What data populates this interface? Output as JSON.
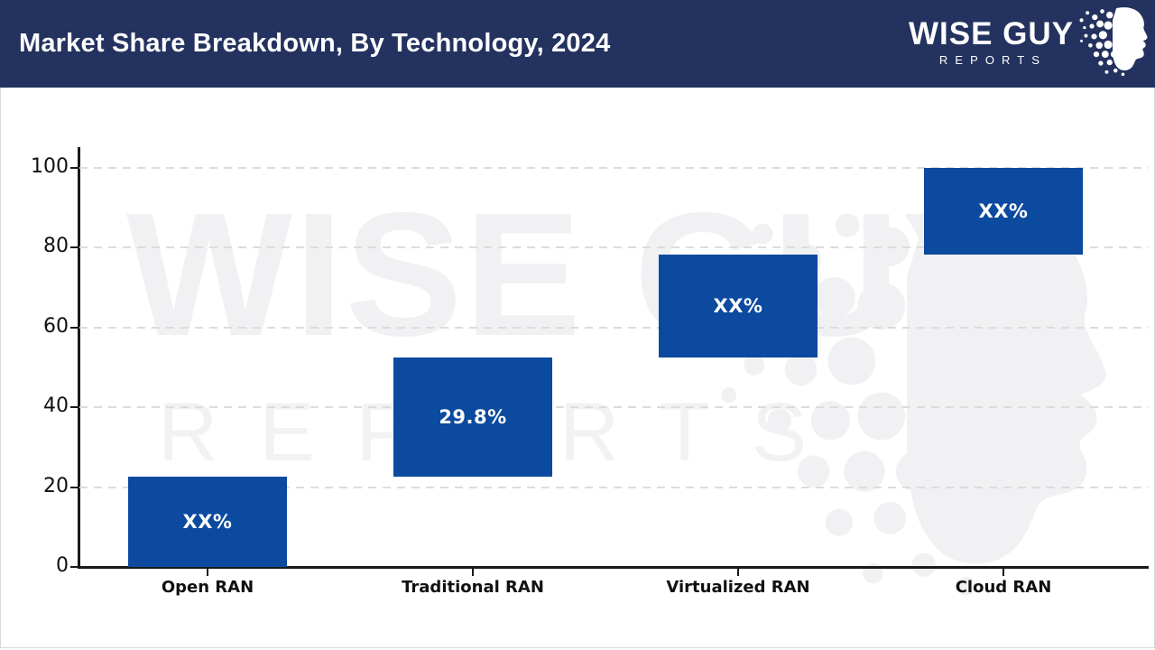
{
  "page": {
    "background": "#ffffff",
    "border_color": "#d9d9d9"
  },
  "header": {
    "title": "Market Share Breakdown, By Technology, 2024",
    "bg_color": "#23325f",
    "text_color": "#ffffff",
    "logo": {
      "wordmark": "WISE GUY",
      "subtext": "REPORTS"
    }
  },
  "watermark": {
    "wordmark": "WISE GUY",
    "subtext": "REPORTS"
  },
  "chart_data": {
    "type": "bar",
    "subtype": "waterfall-stacked-percentage",
    "title": "Market Share Breakdown, By Technology, 2024",
    "categories": [
      "Open RAN",
      "Traditional RAN",
      "Virtualized RAN",
      "Cloud RAN"
    ],
    "series": [
      {
        "name": "Market share (%)",
        "segments": [
          {
            "category": "Open RAN",
            "start": 0,
            "end": 22.7,
            "label": "XX%"
          },
          {
            "category": "Traditional RAN",
            "start": 22.7,
            "end": 52.5,
            "label": "29.8%"
          },
          {
            "category": "Virtualized RAN",
            "start": 52.5,
            "end": 78.2,
            "label": "XX%"
          },
          {
            "category": "Cloud RAN",
            "start": 78.2,
            "end": 100,
            "label": "XX%"
          }
        ]
      }
    ],
    "xlabel": "",
    "ylabel": "",
    "ylim": [
      0,
      100
    ],
    "yticks": [
      0,
      20,
      40,
      60,
      80,
      100
    ],
    "grid": "horizontal-dashed",
    "legend": "none",
    "bar_color": "#0b4a9e",
    "bar_label_color": "#ffffff",
    "axis_color": "#1a1a1a",
    "gridline_color": "#dcdcdc"
  }
}
